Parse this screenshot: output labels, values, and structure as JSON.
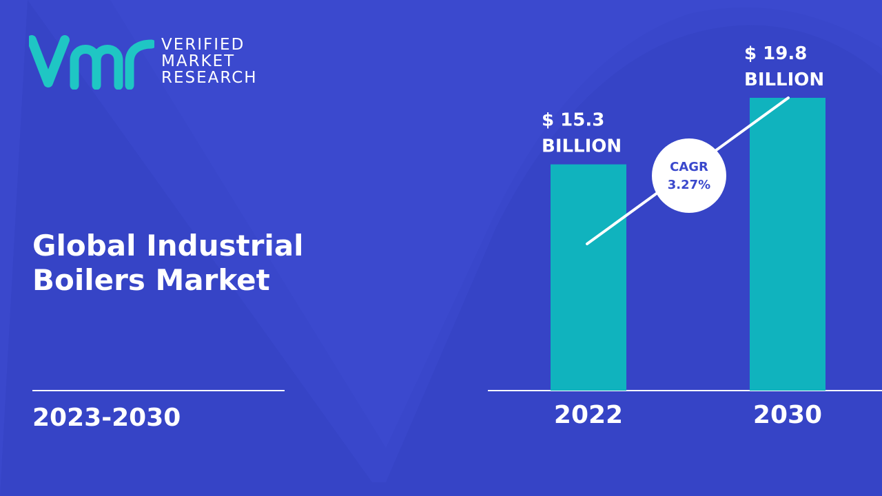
{
  "brand": {
    "line1": "VERIFIED",
    "line2": "MARKET",
    "line3": "RESEARCH",
    "logo_color": "#1fc6c4"
  },
  "title": {
    "line1": "Global Industrial",
    "line2": "Boilers Market"
  },
  "period": "2023-2030",
  "colors": {
    "background": "#3a48cc",
    "bar": "#10b3be",
    "text": "#ffffff"
  },
  "chart_data": {
    "type": "bar",
    "categories": [
      "2022",
      "2030"
    ],
    "values": [
      15.3,
      19.8
    ],
    "value_labels": [
      [
        "$ 15.3",
        "BILLION"
      ],
      [
        "$ 19.8",
        "BILLION"
      ]
    ],
    "cagr": {
      "label": "CAGR",
      "value": "3.27%"
    },
    "ylim": [
      0,
      19.8
    ]
  }
}
